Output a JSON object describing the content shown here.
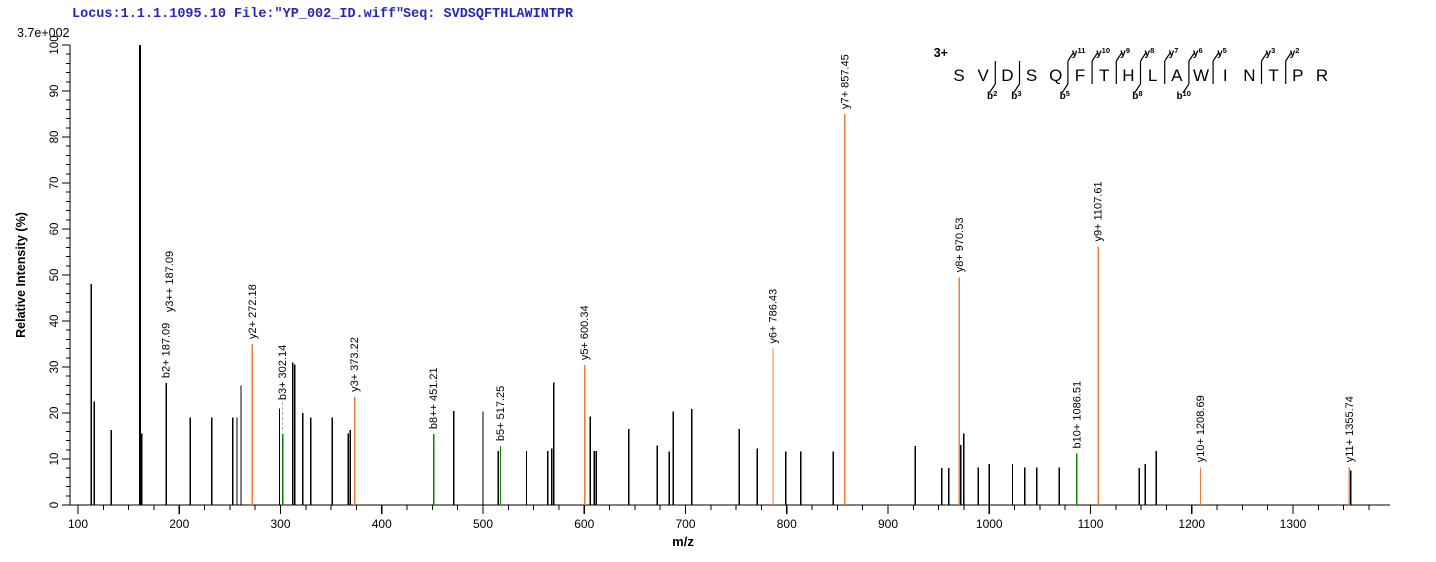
{
  "header": {
    "locus_file": "Locus:1.1.1.1095.10 File:\"YP_002_ID.wiff\"",
    "seq_label": "Seq: SVDSQFTHLAWINTPR",
    "max_intensity": "3.7e+002"
  },
  "colors": {
    "y_ion": "#ef7c3b",
    "b_ion": "#088208",
    "peak_black": "#000000",
    "header_blue": "#2626bd",
    "leader_gray": "#aaaaaa",
    "axis": "#000000"
  },
  "peptide": {
    "charge_label": "3+",
    "sequence": "SVDSQFTHLAWINTPR",
    "y_ions": [
      {
        "name": "y",
        "num": "11",
        "cut_after": 5
      },
      {
        "name": "y",
        "num": "10",
        "cut_after": 6
      },
      {
        "name": "y",
        "num": "9",
        "cut_after": 7
      },
      {
        "name": "y",
        "num": "8",
        "cut_after": 8
      },
      {
        "name": "y",
        "num": "7",
        "cut_after": 9
      },
      {
        "name": "y",
        "num": "6",
        "cut_after": 10
      },
      {
        "name": "y",
        "num": "5",
        "cut_after": 11
      },
      {
        "name": "y",
        "num": "3",
        "cut_after": 13
      },
      {
        "name": "y",
        "num": "2",
        "cut_after": 14
      }
    ],
    "b_ions": [
      {
        "name": "b",
        "num": "2",
        "cut_after": 2
      },
      {
        "name": "b",
        "num": "3",
        "cut_after": 3
      },
      {
        "name": "b",
        "num": "5",
        "cut_after": 5
      },
      {
        "name": "b",
        "num": "8",
        "cut_after": 8
      },
      {
        "name": "b",
        "num": "10",
        "cut_after": 10
      }
    ]
  },
  "axes": {
    "x_label": "m/z",
    "y_label": "Relative  Intensity (%)",
    "x_tick_labels": [
      "100",
      "200",
      "300",
      "400",
      "500",
      "600",
      "700",
      "800",
      "900",
      "1000",
      "1100",
      "1200",
      "1300"
    ],
    "y_tick_labels": [
      "0",
      "10",
      "20",
      "30",
      "40",
      "50",
      "60",
      "70",
      "80",
      "90",
      "100"
    ],
    "x_minor_step": 25,
    "y_minor_step": 2
  },
  "chart_data": {
    "type": "bar",
    "subtype": "ms2-stick-spectrum",
    "title": "",
    "xlabel": "m/z",
    "ylabel": "Relative  Intensity (%)",
    "xlim": [
      100,
      1395
    ],
    "ylim": [
      0,
      100
    ],
    "grid": false,
    "base_peak_label": "3.7e+002",
    "unassigned_peaks": [
      [
        113,
        48
      ],
      [
        116,
        22.5
      ],
      [
        133,
        16.3
      ],
      [
        161,
        100
      ],
      [
        163,
        15.5
      ],
      [
        211,
        19
      ],
      [
        232,
        19
      ],
      [
        253,
        19
      ],
      [
        257,
        19
      ],
      [
        261,
        26
      ],
      [
        299,
        21
      ],
      [
        312,
        31
      ],
      [
        314,
        30.5
      ],
      [
        322,
        20
      ],
      [
        330,
        19
      ],
      [
        351,
        19
      ],
      [
        367,
        15.5
      ],
      [
        369,
        16.3
      ],
      [
        471,
        20.4
      ],
      [
        500,
        20.3
      ],
      [
        515,
        11.7
      ],
      [
        543,
        11.7
      ],
      [
        564,
        11.7
      ],
      [
        568,
        12.3
      ],
      [
        570,
        26.6
      ],
      [
        606,
        19.2
      ],
      [
        610,
        11.7
      ],
      [
        612,
        11.7
      ],
      [
        644,
        16.5
      ],
      [
        672,
        12.9
      ],
      [
        684,
        11.6
      ],
      [
        688,
        20.3
      ],
      [
        706,
        20.9
      ],
      [
        753,
        16.5
      ],
      [
        771,
        12.3
      ],
      [
        799,
        11.6
      ],
      [
        814,
        11.6
      ],
      [
        846,
        11.6
      ],
      [
        927,
        12.8
      ],
      [
        953,
        8
      ],
      [
        960,
        8
      ],
      [
        972,
        13
      ],
      [
        975,
        15.5
      ],
      [
        989,
        8.1
      ],
      [
        1000,
        8.9
      ],
      [
        1023,
        8.9
      ],
      [
        1035,
        8.1
      ],
      [
        1047,
        8.1
      ],
      [
        1069,
        8.1
      ],
      [
        1148,
        8
      ],
      [
        1154,
        8.9
      ],
      [
        1165,
        11.7
      ],
      [
        1357,
        7.5
      ]
    ],
    "fragment_peaks": [
      {
        "ion": "b2+",
        "mz": "187.09",
        "intensity": 26.5,
        "series": "b",
        "peak_color": "black",
        "second_label": {
          "ion": "y3++",
          "mz": "187.09",
          "series": "y"
        }
      },
      {
        "ion": "y2+",
        "mz": "272.18",
        "intensity": 35,
        "series": "y"
      },
      {
        "ion": "b3+",
        "mz": "302.14",
        "intensity": 15.4,
        "series": "b",
        "leader": true
      },
      {
        "ion": "y3+",
        "mz": "373.22",
        "intensity": 23.5,
        "series": "y"
      },
      {
        "ion": "b8++",
        "mz": "451.21",
        "intensity": 15.4,
        "series": "b"
      },
      {
        "ion": "b5+",
        "mz": "517.25",
        "intensity": 12.8,
        "series": "b"
      },
      {
        "ion": "y5+",
        "mz": "600.34",
        "intensity": 30.4,
        "series": "y"
      },
      {
        "ion": "y6+",
        "mz": "786.43",
        "intensity": 34,
        "series": "y"
      },
      {
        "ion": "y7+",
        "mz": "857.45",
        "intensity": 85,
        "series": "y"
      },
      {
        "ion": "y8+",
        "mz": "970.53",
        "intensity": 49.5,
        "series": "y"
      },
      {
        "ion": "b10+",
        "mz": "1086.51",
        "intensity": 11.2,
        "series": "b"
      },
      {
        "ion": "y9+",
        "mz": "1107.61",
        "intensity": 56.2,
        "series": "y"
      },
      {
        "ion": "y10+",
        "mz": "1208.69",
        "intensity": 8.2,
        "series": "y"
      },
      {
        "ion": "y11+",
        "mz": "1355.74",
        "intensity": 8.2,
        "series": "y"
      }
    ]
  }
}
